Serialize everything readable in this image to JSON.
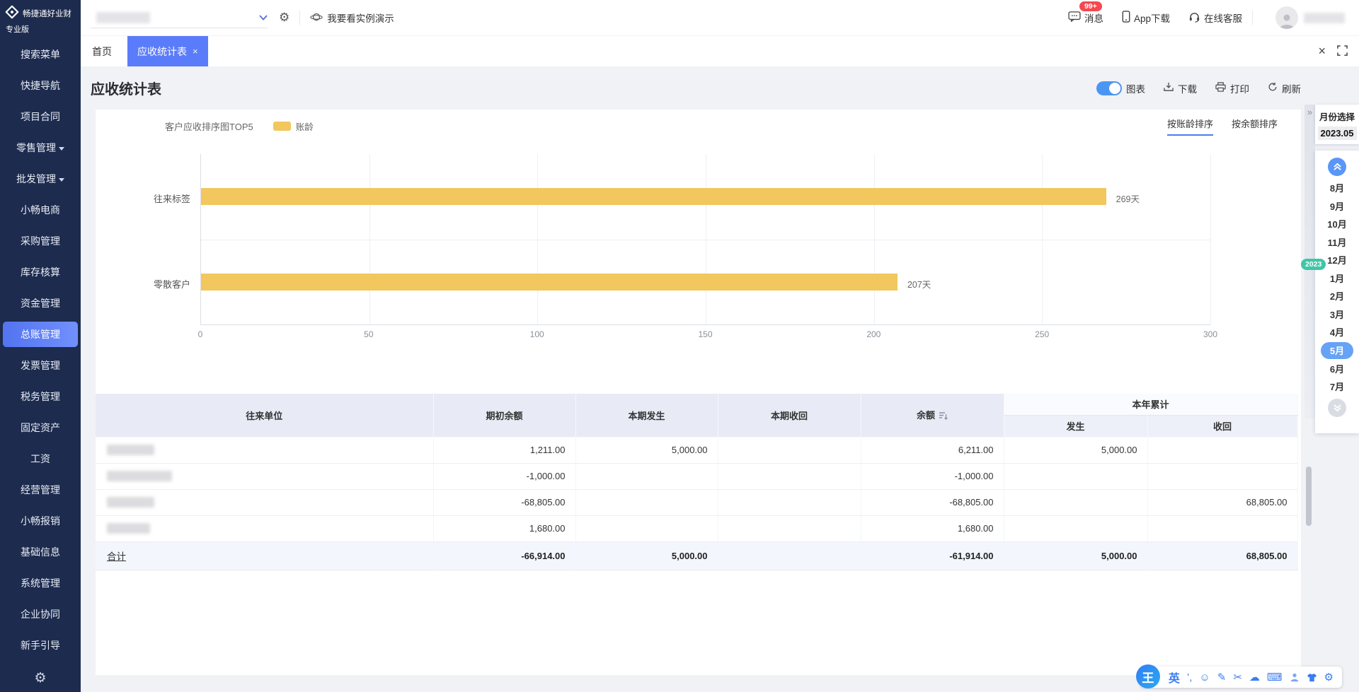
{
  "colors": {
    "accent": "#5b7cfa",
    "sidebar_bg": "#1d2b4e",
    "bar_yellow": "#f1c75e",
    "badge_red": "#f4494f",
    "badge_green": "#3fc6a7",
    "toggle_on": "#4b96f3",
    "month_selected": "#66a3f7"
  },
  "brand": {
    "name": "畅捷通好业财",
    "edition": "专业版"
  },
  "topbar": {
    "demo": "我要看实例演示",
    "messages": "消息",
    "messages_badge": "99+",
    "app_download": "App下载",
    "online_service": "在线客服"
  },
  "sidebar": {
    "items": [
      {
        "label": "搜索菜单"
      },
      {
        "label": "快捷导航"
      },
      {
        "label": "项目合同"
      },
      {
        "label": "零售管理",
        "expandable": true
      },
      {
        "label": "批发管理",
        "expandable": true
      },
      {
        "label": "小畅电商"
      },
      {
        "label": "采购管理"
      },
      {
        "label": "库存核算"
      },
      {
        "label": "资金管理"
      },
      {
        "label": "总账管理",
        "active": true
      },
      {
        "label": "发票管理"
      },
      {
        "label": "税务管理"
      },
      {
        "label": "固定资产"
      },
      {
        "label": "工资"
      },
      {
        "label": "经营管理"
      },
      {
        "label": "小畅报销"
      },
      {
        "label": "基础信息"
      },
      {
        "label": "系统管理"
      },
      {
        "label": "企业协同"
      },
      {
        "label": "新手引导"
      }
    ]
  },
  "tabs": {
    "items": [
      "首页",
      "应收统计表"
    ]
  },
  "page": {
    "title": "应收统计表",
    "toolbar": {
      "chart_toggle": "图表",
      "download": "下载",
      "print": "打印",
      "refresh": "刷新"
    }
  },
  "chart_data": {
    "type": "bar",
    "orientation": "horizontal",
    "title": "客户应收排序图TOP5",
    "legend": [
      "账龄"
    ],
    "categories": [
      "往来标签",
      "零散客户"
    ],
    "values": [
      269,
      207
    ],
    "unit": "天",
    "value_labels": [
      "269天",
      "207天"
    ],
    "xlim": [
      0,
      300
    ],
    "x_ticks": [
      "0",
      "50",
      "100",
      "150",
      "200",
      "250",
      "300"
    ],
    "grid": true,
    "bar_color": "#f1c75e",
    "sort_tabs": [
      "按账龄排序",
      "按余额排序"
    ],
    "active_sort": "按账龄排序"
  },
  "month_panel": {
    "title": "月份选择",
    "current": "2023.05",
    "year_badge": "2023",
    "months": [
      "8月",
      "9月",
      "10月",
      "11月",
      "12月",
      "1月",
      "2月",
      "3月",
      "4月",
      "5月",
      "6月",
      "7月"
    ],
    "selected": "5月"
  },
  "table": {
    "columns": [
      "往来单位",
      "期初余额",
      "本期发生",
      "本期收回",
      "余额",
      "本年累计"
    ],
    "subcolumns": [
      "发生",
      "收回"
    ],
    "rows": [
      {
        "opening": "1,211.00",
        "incurred": "5,000.00",
        "received": "",
        "balance": "6,211.00",
        "ytd_incurred": "5,000.00",
        "ytd_received": ""
      },
      {
        "opening": "-1,000.00",
        "incurred": "",
        "received": "",
        "balance": "-1,000.00",
        "ytd_incurred": "",
        "ytd_received": ""
      },
      {
        "opening": "-68,805.00",
        "incurred": "",
        "received": "",
        "balance": "-68,805.00",
        "ytd_incurred": "",
        "ytd_received": "68,805.00"
      },
      {
        "opening": "1,680.00",
        "incurred": "",
        "received": "",
        "balance": "1,680.00",
        "ytd_incurred": "",
        "ytd_received": ""
      }
    ],
    "total": {
      "label": "合计",
      "opening": "-66,914.00",
      "incurred": "5,000.00",
      "received": "",
      "balance": "-61,914.00",
      "ytd_incurred": "5,000.00",
      "ytd_received": "68,805.00"
    }
  },
  "ime": {
    "logo": "王",
    "lang": "英"
  }
}
